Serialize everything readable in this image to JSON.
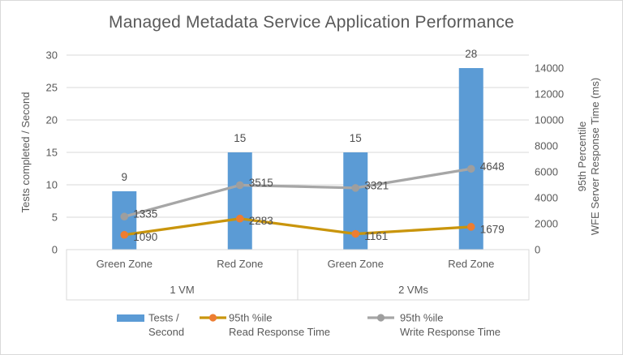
{
  "chart_data": {
    "type": "combo",
    "title": "Managed Metadata Service Application Performance",
    "categories": [
      "Green Zone",
      "Red Zone",
      "Green Zone",
      "Red Zone"
    ],
    "category_groups": [
      {
        "label": "1 VM",
        "span": 2
      },
      {
        "label": "2 VMs",
        "span": 2
      }
    ],
    "series": [
      {
        "name": "Tests / Second",
        "legend_lines": [
          "Tests /",
          "Second"
        ],
        "type": "bar",
        "axis": "left",
        "color": "#5B9BD5",
        "values": [
          9,
          15,
          15,
          28
        ]
      },
      {
        "name": "95th %ile Read Response Time",
        "legend_lines": [
          "95th %ile",
          "Read Response Time"
        ],
        "type": "line",
        "axis": "right",
        "line_color": "#C9950C",
        "marker_color": "#ED7D31",
        "values": [
          1090,
          2283,
          1161,
          1679
        ]
      },
      {
        "name": "95th %ile Write Response Time",
        "legend_lines": [
          "95th %ile",
          "Write Response Time"
        ],
        "type": "line",
        "axis": "right",
        "line_color": "#A6A6A6",
        "marker_color": "#9E9E9E",
        "values": [
          1335,
          3515,
          3321,
          4648
        ]
      }
    ],
    "left_axis": {
      "title": "Tests completed / Second",
      "min": 0,
      "max": 30,
      "major": 5,
      "ticks": [
        0,
        5,
        10,
        15,
        20,
        25,
        30
      ]
    },
    "right_axis": {
      "title_lines": [
        "95th Percentile",
        "WFE Server Response Time (ms)"
      ],
      "min": 0,
      "max": 15000,
      "major": 2000,
      "ticks": [
        0,
        2000,
        4000,
        6000,
        8000,
        10000,
        12000,
        14000
      ]
    },
    "legend_position": "bottom",
    "grid": true,
    "colors": {
      "text": "#595959",
      "data_label": "#4d4d4d",
      "gridline": "#d9d9d9",
      "border": "#d9d9d9"
    }
  }
}
